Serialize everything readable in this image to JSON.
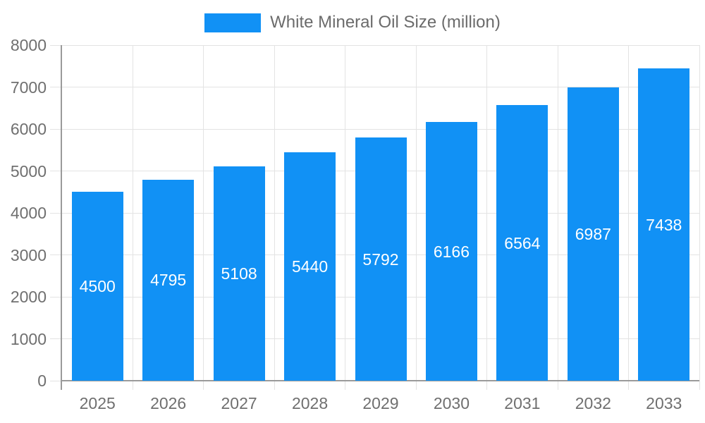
{
  "legend": {
    "label": "White Mineral Oil Size (million)",
    "position": "top-center"
  },
  "chart_data": {
    "type": "bar",
    "title": "",
    "xlabel": "",
    "ylabel": "",
    "categories": [
      "2025",
      "2026",
      "2027",
      "2028",
      "2029",
      "2030",
      "2031",
      "2032",
      "2033"
    ],
    "series": [
      {
        "name": "White Mineral Oil Size (million)",
        "values": [
          4500,
          4795,
          5108,
          5440,
          5792,
          6166,
          6564,
          6987,
          7438
        ]
      }
    ],
    "value_labels_shown": true,
    "value_label_position": "inside-middle",
    "ylim": [
      0,
      8000
    ],
    "ytick_step": 1000,
    "yticks": [
      0,
      1000,
      2000,
      3000,
      4000,
      5000,
      6000,
      7000,
      8000
    ],
    "grid": "horizontal-and-vertical",
    "legend_position": "top",
    "colors": {
      "bar": "#1191f5",
      "grid": "#e3e3e3",
      "axis": "#9a9a9a",
      "tick_text": "#6f6f6f",
      "value_label_text": "#ffffff",
      "legend_text": "#6b6b6b",
      "background": "#ffffff"
    }
  }
}
